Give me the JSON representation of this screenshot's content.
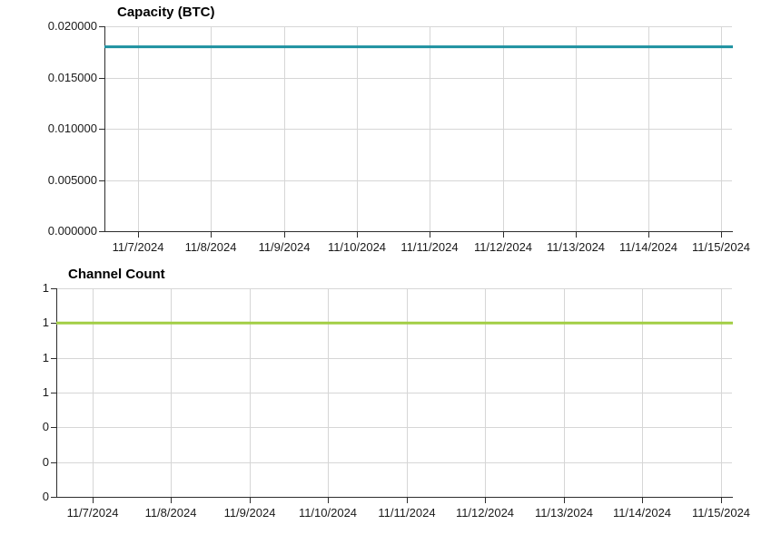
{
  "chart_data": [
    {
      "type": "line",
      "title": "Capacity (BTC)",
      "x": [
        "11/7/2024",
        "11/8/2024",
        "11/9/2024",
        "11/10/2024",
        "11/11/2024",
        "11/12/2024",
        "11/13/2024",
        "11/14/2024",
        "11/15/2024"
      ],
      "series": [
        {
          "name": "Capacity (BTC)",
          "values": [
            0.018,
            0.018,
            0.018,
            0.018,
            0.018,
            0.018,
            0.018,
            0.018,
            0.018
          ]
        }
      ],
      "ylim": [
        0,
        0.02
      ],
      "y_tick_labels": [
        "0.020000",
        "0.015000",
        "0.010000",
        "0.005000",
        "0.000000"
      ],
      "xlabel": "",
      "ylabel": "",
      "grid": true,
      "legend": "none",
      "line_color": "#1d91a0"
    },
    {
      "type": "line",
      "title": "Channel Count",
      "x": [
        "11/7/2024",
        "11/8/2024",
        "11/9/2024",
        "11/10/2024",
        "11/11/2024",
        "11/12/2024",
        "11/13/2024",
        "11/14/2024",
        "11/15/2024"
      ],
      "series": [
        {
          "name": "Channel Count",
          "values": [
            1,
            1,
            1,
            1,
            1,
            1,
            1,
            1,
            1
          ]
        }
      ],
      "ylim": [
        0,
        1.2
      ],
      "y_tick_labels": [
        "1",
        "1",
        "1",
        "1",
        "0",
        "0",
        "0"
      ],
      "xlabel": "",
      "ylabel": "",
      "grid": true,
      "legend": "none",
      "line_color": "#a2ce44"
    }
  ],
  "colors": {
    "capacity_line": "#1d91a0",
    "channel_count_line": "#a2ce44",
    "gridline": "#d6d6d6",
    "axis": "#2d2d2d",
    "tick_label": "#1a1a1a"
  }
}
